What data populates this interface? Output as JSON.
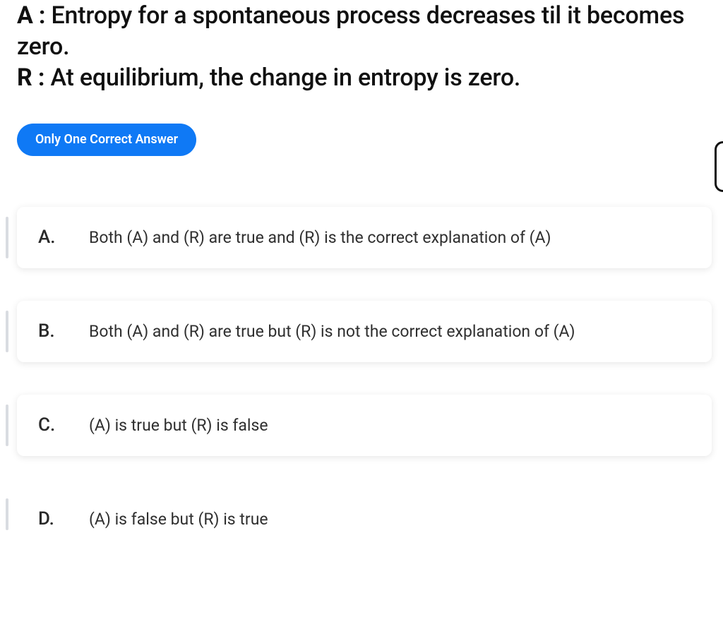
{
  "question": {
    "assertion_label": "A :",
    "assertion_text": "Entropy for a spontaneous process decreases til it becomes zero.",
    "reason_label": "R :",
    "reason_text": "At equilibrium, the change in entropy is zero."
  },
  "badge": {
    "text": "Only One Correct Answer",
    "bg_color": "#0f79f5",
    "text_color": "#ffffff"
  },
  "options": [
    {
      "letter": "A.",
      "text": "Both (A) and (R) are true and (R) is the correct explanation of (A)"
    },
    {
      "letter": "B.",
      "text": "Both (A) and (R) are true but (R) is not the correct explanation of (A)"
    },
    {
      "letter": "C.",
      "text": "(A) is true but (R) is false"
    },
    {
      "letter": "D.",
      "text": "(A) is false but (R) is true"
    }
  ],
  "styles": {
    "page_bg": "#ffffff",
    "text_color": "#111111",
    "option_bg": "#ffffff",
    "option_shadow": "rgba(0,0,0,0.10)",
    "option_accent": "#d9dce1",
    "question_fontsize": 34,
    "option_letter_fontsize": 26,
    "option_text_fontsize": 23,
    "badge_fontsize": 18
  }
}
